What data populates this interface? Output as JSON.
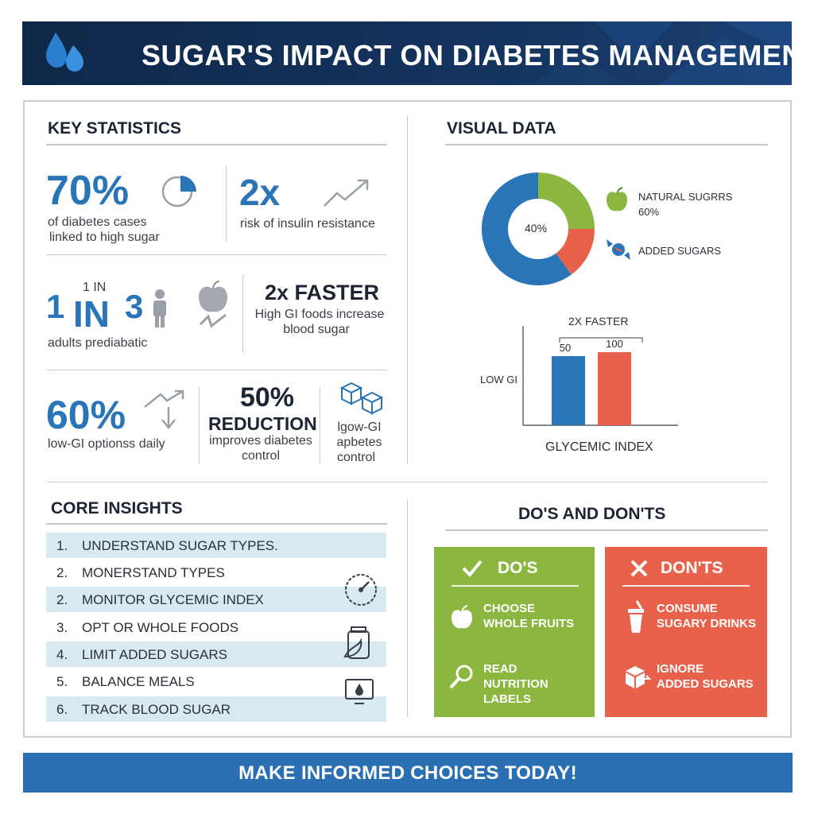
{
  "header": {
    "title": "SUGAR'S IMPACT ON DIABETES MANAGEMENT"
  },
  "key_stats": {
    "title": "KEY STATISTICS",
    "s1": {
      "value": "70%",
      "line1": "of diabetes cases",
      "line2": "linked to high sugar"
    },
    "s2": {
      "value": "2x",
      "text": "risk of insulin resistance"
    },
    "s3": {
      "one": "1",
      "in_small": "1 IN",
      "in_big": "IN",
      "three": "3",
      "text": "adults prediabatic"
    },
    "s4": {
      "value": "2x FASTER",
      "line1": "High GI foods increase",
      "line2": "blood sugar"
    },
    "s5": {
      "value": "60%",
      "text": "low-GI optionss daily"
    },
    "s6": {
      "value": "50%",
      "value2": "REDUCTION",
      "line1": "improves diabetes",
      "line2": "control"
    },
    "s7": {
      "line1": "lgow-GI",
      "line2": "apbetes",
      "line3": "control"
    }
  },
  "visual_data": {
    "title": "VISUAL DATA",
    "donut": {
      "center_label": "40%",
      "natural_label": "NATURAL SUGRRS",
      "natural_value": "60%",
      "added_label": "ADDED SUGARS"
    },
    "bars": {
      "top_label": "2X FASTER",
      "y_label": "LOW GI",
      "x_label": "GLYCEMIC INDEX"
    }
  },
  "chart_data": [
    {
      "type": "pie",
      "title": "",
      "slices": [
        {
          "name": "blue segment",
          "value": 60,
          "color": "#2a74b8"
        },
        {
          "name": "green segment",
          "value": 25,
          "color": "#8bb640"
        },
        {
          "name": "red segment",
          "value": 15,
          "color": "#e8614a"
        }
      ],
      "center_label": "40%"
    },
    {
      "type": "bar",
      "title": "2X FASTER",
      "xlabel": "GLYCEMIC INDEX",
      "ylabel": "LOW GI",
      "categories": [
        "",
        ""
      ],
      "values": [
        50,
        100
      ],
      "data_labels": [
        "50",
        "100"
      ],
      "colors": [
        "#2a74b8",
        "#e8614a"
      ],
      "ylim": [
        0,
        120
      ],
      "grid": false
    }
  ],
  "insights": {
    "title": "CORE INSIGHTS",
    "items": [
      {
        "num": "1.",
        "text": "UNDERSTAND SUGAR TYPES."
      },
      {
        "num": "2.",
        "text": "MONERSTAND TYPES"
      },
      {
        "num": "2.",
        "text": "MONITOR GLYCEMIC INDEX"
      },
      {
        "num": "3.",
        "text": "OPT OR WHOLE FOODS"
      },
      {
        "num": "4.",
        "text": "LIMIT ADDED SUGARS"
      },
      {
        "num": "5.",
        "text": "BALANCE MEALS"
      },
      {
        "num": "6.",
        "text": "TRACK BLOOD SUGAR"
      }
    ]
  },
  "dos_donts": {
    "title": "DO'S AND DON'TS",
    "dos": {
      "title": "DO'S",
      "item1a": "CHOOSE",
      "item1b": "WHOLE FRUITS",
      "item2a": "READ",
      "item2b": "NUTRITION",
      "item2c": "LABELS"
    },
    "donts": {
      "title": "DON'TS",
      "item1a": "CONSUME",
      "item1b": "SUGARY DRINKS",
      "item2a": "IGNORE",
      "item2b": "ADDED SUGARS"
    }
  },
  "footer": {
    "text": "MAKE INFORMED CHOICES TODAY!"
  },
  "colors": {
    "navy": "#14345f",
    "blue": "#2a74b8",
    "green": "#8bb640",
    "red": "#e8614a",
    "light_blue": "#d8e9f2"
  }
}
